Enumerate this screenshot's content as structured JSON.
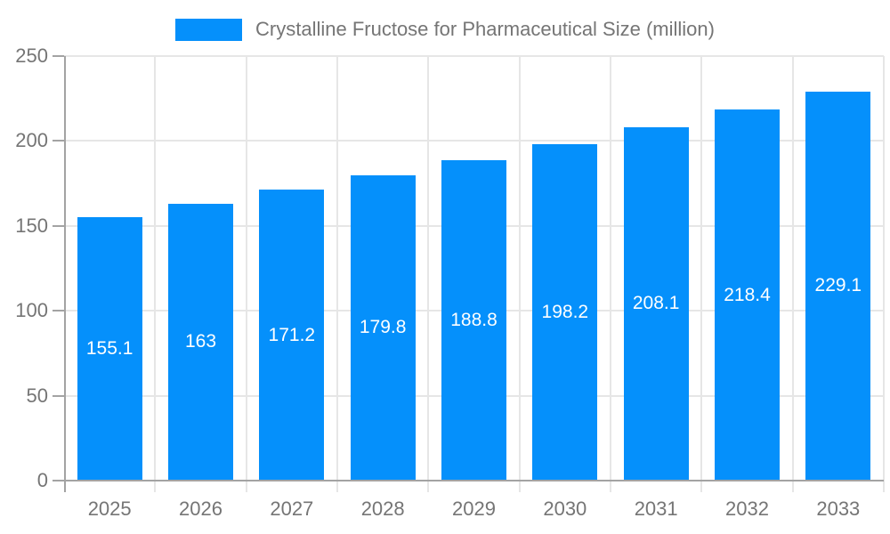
{
  "legend": {
    "label": "Crystalline Fructose for Pharmaceutical Size (million)"
  },
  "chart_data": {
    "type": "bar",
    "title": "Crystalline Fructose for Pharmaceutical Size (million)",
    "categories": [
      "2025",
      "2026",
      "2027",
      "2028",
      "2029",
      "2030",
      "2031",
      "2032",
      "2033"
    ],
    "values": [
      155.1,
      163,
      171.2,
      179.8,
      188.8,
      198.2,
      208.1,
      218.4,
      229.1
    ],
    "xlabel": "",
    "ylabel": "",
    "ylim": [
      0,
      250
    ],
    "yticks": [
      0,
      50,
      100,
      150,
      200,
      250
    ],
    "grid": true,
    "legend_position": "top-center",
    "value_labels": "inside-center",
    "colors": {
      "bar": "#0590fb",
      "value_label": "#ffffff",
      "axis_text": "#757575",
      "gridline": "#e6e6e6",
      "axis_line": "#a3a3a3",
      "background": "#ffffff"
    }
  }
}
